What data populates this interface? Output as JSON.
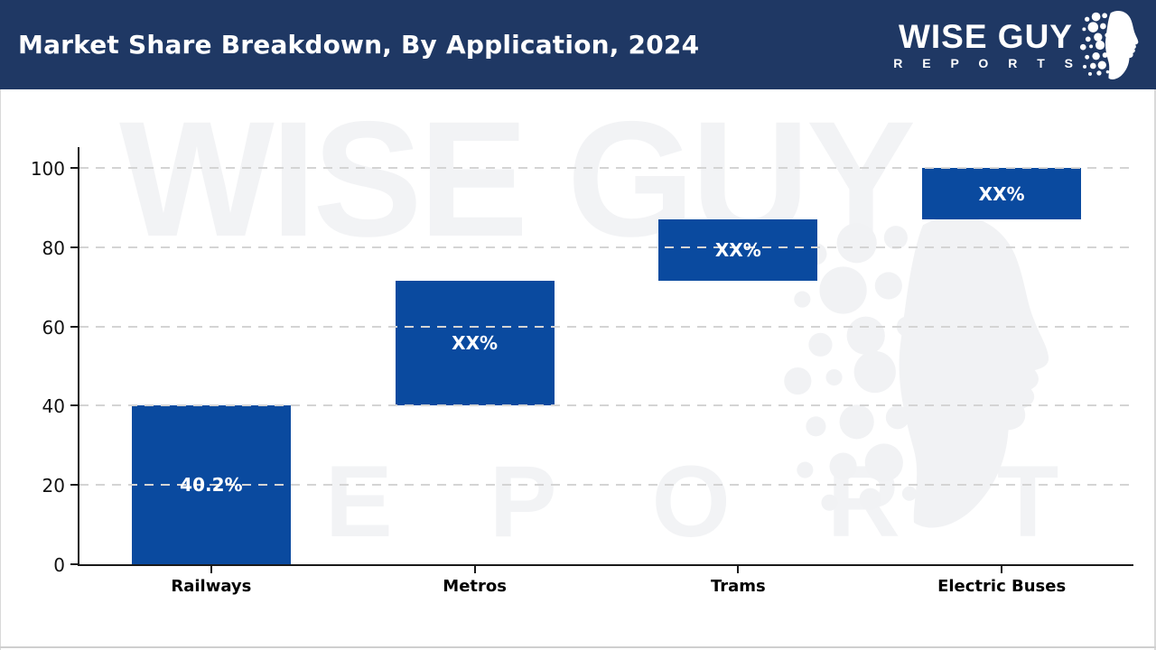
{
  "header": {
    "title": "Market Share Breakdown, By Application, 2024",
    "bg_color": "#1f3864",
    "brand": {
      "line1": "WISE GUY",
      "line2": "R E P O R T S"
    }
  },
  "watermark": {
    "line1": "WISE GUY",
    "line2": "R E P O R T S"
  },
  "chart_data": {
    "type": "bar",
    "subtype": "waterfall",
    "title": "Market Share Breakdown, By Application, 2024",
    "categories": [
      "Railways",
      "Metros",
      "Trams",
      "Electric Buses"
    ],
    "segments": [
      {
        "category": "Railways",
        "start": 0,
        "end": 40.2,
        "value": 40.2,
        "label": "40.2%"
      },
      {
        "category": "Metros",
        "start": 40.2,
        "end": 71.6,
        "value": 31.4,
        "label": "XX%"
      },
      {
        "category": "Trams",
        "start": 71.6,
        "end": 87.0,
        "value": 15.4,
        "label": "XX%"
      },
      {
        "category": "Electric Buses",
        "start": 87.0,
        "end": 100,
        "value": 13.0,
        "label": "XX%"
      }
    ],
    "xlabel": "",
    "ylabel": "",
    "ylim": [
      0,
      100
    ],
    "yticks": [
      0,
      20,
      40,
      60,
      80,
      100
    ],
    "gridline_values": [
      20,
      40,
      60,
      80,
      100
    ],
    "grid": true,
    "grid_style": "dashed",
    "legend": "none",
    "bar_color": "#0a4a9f",
    "bar_label_color": "#ffffff",
    "axis_color": "#1a1a1a",
    "gridline_color": "#d4d4d4"
  }
}
